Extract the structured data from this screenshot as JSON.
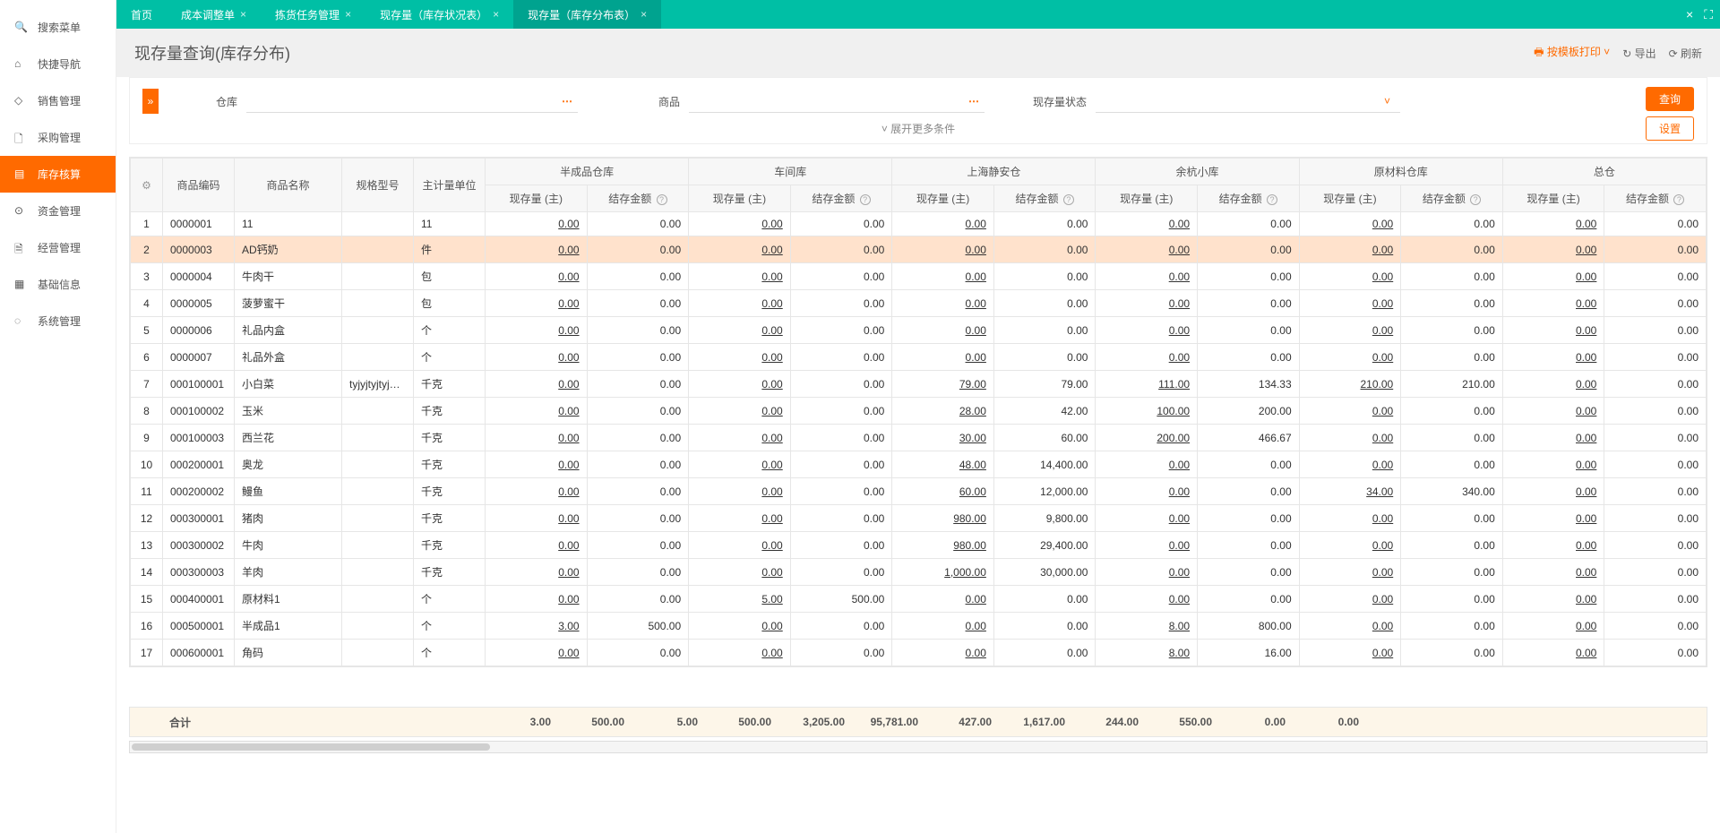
{
  "sidebar": [
    {
      "label": "搜索菜单",
      "icon": "🔍"
    },
    {
      "label": "快捷导航",
      "icon": "⌂"
    },
    {
      "label": "销售管理",
      "icon": "◇"
    },
    {
      "label": "采购管理",
      "icon": "🗋"
    },
    {
      "label": "库存核算",
      "icon": "▤",
      "active": true
    },
    {
      "label": "资金管理",
      "icon": "⊙"
    },
    {
      "label": "经营管理",
      "icon": "🗎"
    },
    {
      "label": "基础信息",
      "icon": "▦"
    },
    {
      "label": "系统管理",
      "icon": "◌"
    }
  ],
  "tabs": [
    {
      "label": "首页",
      "closable": false
    },
    {
      "label": "成本调整单",
      "closable": true
    },
    {
      "label": "拣货任务管理",
      "closable": true
    },
    {
      "label": "现存量（库存状况表）",
      "closable": true
    },
    {
      "label": "现存量（库存分布表）",
      "closable": true,
      "active": true
    }
  ],
  "pageTitle": "现存量查询(库存分布)",
  "tools": {
    "print": "按模板打印",
    "export": "导出",
    "refresh": "刷新"
  },
  "query": {
    "f1": "仓库",
    "f2": "商品",
    "f3": "现存量状态",
    "btnQuery": "查询",
    "btnSet": "设置",
    "expand": "展开更多条件"
  },
  "groups": [
    "半成品仓库",
    "车间库",
    "上海静安仓",
    "余杭小库",
    "原材料仓库",
    "总仓"
  ],
  "head": {
    "idx": "",
    "code": "商品编码",
    "name": "商品名称",
    "spec": "规格型号",
    "unit": "主计量单位",
    "qty": "现存量 (主)",
    "amt": "结存金额"
  },
  "rows": [
    {
      "idx": 1,
      "code": "0000001",
      "name": "11",
      "spec": "",
      "unit": "11",
      "v": [
        [
          "0.00",
          "0.00"
        ],
        [
          "0.00",
          "0.00"
        ],
        [
          "0.00",
          "0.00"
        ],
        [
          "0.00",
          "0.00"
        ],
        [
          "0.00",
          "0.00"
        ],
        [
          "0.00",
          "0.00"
        ]
      ]
    },
    {
      "idx": 2,
      "code": "0000003",
      "name": "AD钙奶",
      "spec": "",
      "unit": "件",
      "hl": true,
      "v": [
        [
          "0.00",
          "0.00"
        ],
        [
          "0.00",
          "0.00"
        ],
        [
          "0.00",
          "0.00"
        ],
        [
          "0.00",
          "0.00"
        ],
        [
          "0.00",
          "0.00"
        ],
        [
          "0.00",
          "0.00"
        ]
      ]
    },
    {
      "idx": 3,
      "code": "0000004",
      "name": "牛肉干",
      "spec": "",
      "unit": "包",
      "v": [
        [
          "0.00",
          "0.00"
        ],
        [
          "0.00",
          "0.00"
        ],
        [
          "0.00",
          "0.00"
        ],
        [
          "0.00",
          "0.00"
        ],
        [
          "0.00",
          "0.00"
        ],
        [
          "0.00",
          "0.00"
        ]
      ]
    },
    {
      "idx": 4,
      "code": "0000005",
      "name": "菠萝蜜干",
      "spec": "",
      "unit": "包",
      "v": [
        [
          "0.00",
          "0.00"
        ],
        [
          "0.00",
          "0.00"
        ],
        [
          "0.00",
          "0.00"
        ],
        [
          "0.00",
          "0.00"
        ],
        [
          "0.00",
          "0.00"
        ],
        [
          "0.00",
          "0.00"
        ]
      ]
    },
    {
      "idx": 5,
      "code": "0000006",
      "name": "礼品内盒",
      "spec": "",
      "unit": "个",
      "v": [
        [
          "0.00",
          "0.00"
        ],
        [
          "0.00",
          "0.00"
        ],
        [
          "0.00",
          "0.00"
        ],
        [
          "0.00",
          "0.00"
        ],
        [
          "0.00",
          "0.00"
        ],
        [
          "0.00",
          "0.00"
        ]
      ]
    },
    {
      "idx": 6,
      "code": "0000007",
      "name": "礼品外盒",
      "spec": "",
      "unit": "个",
      "v": [
        [
          "0.00",
          "0.00"
        ],
        [
          "0.00",
          "0.00"
        ],
        [
          "0.00",
          "0.00"
        ],
        [
          "0.00",
          "0.00"
        ],
        [
          "0.00",
          "0.00"
        ],
        [
          "0.00",
          "0.00"
        ]
      ]
    },
    {
      "idx": 7,
      "code": "000100001",
      "name": "小白菜",
      "spec": "tyjyjtyjtyjdf...",
      "unit": "千克",
      "v": [
        [
          "0.00",
          "0.00"
        ],
        [
          "0.00",
          "0.00"
        ],
        [
          "79.00",
          "79.00"
        ],
        [
          "111.00",
          "134.33"
        ],
        [
          "210.00",
          "210.00"
        ],
        [
          "0.00",
          "0.00"
        ]
      ]
    },
    {
      "idx": 8,
      "code": "000100002",
      "name": "玉米",
      "spec": "",
      "unit": "千克",
      "v": [
        [
          "0.00",
          "0.00"
        ],
        [
          "0.00",
          "0.00"
        ],
        [
          "28.00",
          "42.00"
        ],
        [
          "100.00",
          "200.00"
        ],
        [
          "0.00",
          "0.00"
        ],
        [
          "0.00",
          "0.00"
        ]
      ]
    },
    {
      "idx": 9,
      "code": "000100003",
      "name": "西兰花",
      "spec": "",
      "unit": "千克",
      "v": [
        [
          "0.00",
          "0.00"
        ],
        [
          "0.00",
          "0.00"
        ],
        [
          "30.00",
          "60.00"
        ],
        [
          "200.00",
          "466.67"
        ],
        [
          "0.00",
          "0.00"
        ],
        [
          "0.00",
          "0.00"
        ]
      ]
    },
    {
      "idx": 10,
      "code": "000200001",
      "name": "奥龙",
      "spec": "",
      "unit": "千克",
      "v": [
        [
          "0.00",
          "0.00"
        ],
        [
          "0.00",
          "0.00"
        ],
        [
          "48.00",
          "14,400.00"
        ],
        [
          "0.00",
          "0.00"
        ],
        [
          "0.00",
          "0.00"
        ],
        [
          "0.00",
          "0.00"
        ]
      ]
    },
    {
      "idx": 11,
      "code": "000200002",
      "name": "鳗鱼",
      "spec": "",
      "unit": "千克",
      "v": [
        [
          "0.00",
          "0.00"
        ],
        [
          "0.00",
          "0.00"
        ],
        [
          "60.00",
          "12,000.00"
        ],
        [
          "0.00",
          "0.00"
        ],
        [
          "34.00",
          "340.00"
        ],
        [
          "0.00",
          "0.00"
        ]
      ]
    },
    {
      "idx": 12,
      "code": "000300001",
      "name": "猪肉",
      "spec": "",
      "unit": "千克",
      "v": [
        [
          "0.00",
          "0.00"
        ],
        [
          "0.00",
          "0.00"
        ],
        [
          "980.00",
          "9,800.00"
        ],
        [
          "0.00",
          "0.00"
        ],
        [
          "0.00",
          "0.00"
        ],
        [
          "0.00",
          "0.00"
        ]
      ]
    },
    {
      "idx": 13,
      "code": "000300002",
      "name": "牛肉",
      "spec": "",
      "unit": "千克",
      "v": [
        [
          "0.00",
          "0.00"
        ],
        [
          "0.00",
          "0.00"
        ],
        [
          "980.00",
          "29,400.00"
        ],
        [
          "0.00",
          "0.00"
        ],
        [
          "0.00",
          "0.00"
        ],
        [
          "0.00",
          "0.00"
        ]
      ]
    },
    {
      "idx": 14,
      "code": "000300003",
      "name": "羊肉",
      "spec": "",
      "unit": "千克",
      "v": [
        [
          "0.00",
          "0.00"
        ],
        [
          "0.00",
          "0.00"
        ],
        [
          "1,000.00",
          "30,000.00"
        ],
        [
          "0.00",
          "0.00"
        ],
        [
          "0.00",
          "0.00"
        ],
        [
          "0.00",
          "0.00"
        ]
      ]
    },
    {
      "idx": 15,
      "code": "000400001",
      "name": "原材料1",
      "spec": "",
      "unit": "个",
      "v": [
        [
          "0.00",
          "0.00"
        ],
        [
          "5.00",
          "500.00"
        ],
        [
          "0.00",
          "0.00"
        ],
        [
          "0.00",
          "0.00"
        ],
        [
          "0.00",
          "0.00"
        ],
        [
          "0.00",
          "0.00"
        ]
      ]
    },
    {
      "idx": 16,
      "code": "000500001",
      "name": "半成品1",
      "spec": "",
      "unit": "个",
      "v": [
        [
          "3.00",
          "500.00"
        ],
        [
          "0.00",
          "0.00"
        ],
        [
          "0.00",
          "0.00"
        ],
        [
          "8.00",
          "800.00"
        ],
        [
          "0.00",
          "0.00"
        ],
        [
          "0.00",
          "0.00"
        ]
      ]
    },
    {
      "idx": 17,
      "code": "000600001",
      "name": "角码",
      "spec": "",
      "unit": "个",
      "v": [
        [
          "0.00",
          "0.00"
        ],
        [
          "0.00",
          "0.00"
        ],
        [
          "0.00",
          "0.00"
        ],
        [
          "8.00",
          "16.00"
        ],
        [
          "0.00",
          "0.00"
        ],
        [
          "0.00",
          "0.00"
        ]
      ]
    }
  ],
  "totals": {
    "label": "合计",
    "v": [
      "3.00",
      "500.00",
      "5.00",
      "500.00",
      "3,205.00",
      "95,781.00",
      "427.00",
      "1,617.00",
      "244.00",
      "550.00",
      "0.00",
      "0.00"
    ]
  }
}
